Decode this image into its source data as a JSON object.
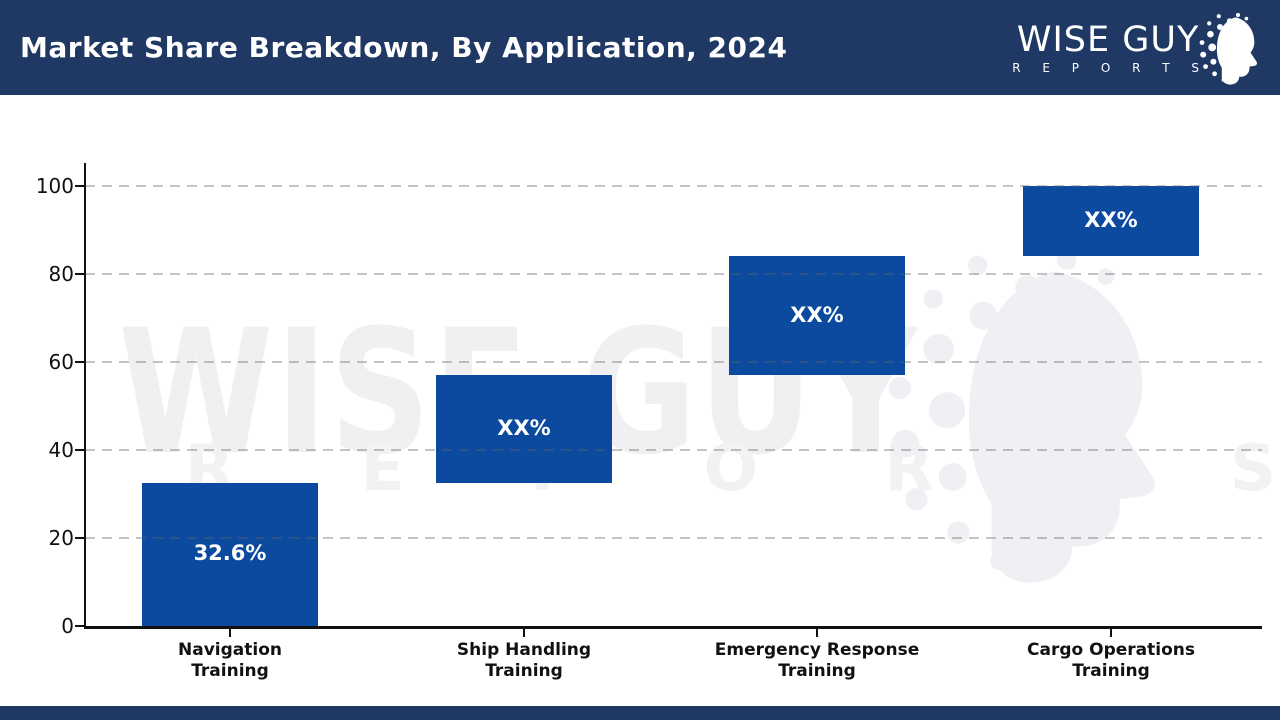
{
  "header": {
    "title": "Market Share Breakdown, By Application, 2024",
    "logo": {
      "line1": "WISE GUY",
      "line2": "R E P O R T S"
    }
  },
  "watermark": {
    "line1": "WISE GUY",
    "line2": "R E P O R T S"
  },
  "chart_data": {
    "type": "bar",
    "variant": "waterfall",
    "title": "Market Share Breakdown, By Application, 2024",
    "categories": [
      "Navigation\nTraining",
      "Ship Handling\nTraining",
      "Emergency Response\nTraining",
      "Cargo Operations\nTraining"
    ],
    "series": [
      {
        "name": "Navigation Training",
        "start": 0,
        "end": 32.6,
        "value": 32.6,
        "label": "32.6%"
      },
      {
        "name": "Ship Handling Training",
        "start": 32.6,
        "end": 57,
        "value": 24.4,
        "label": "XX%"
      },
      {
        "name": "Emergency Response Training",
        "start": 57,
        "end": 84,
        "value": 27,
        "label": "XX%"
      },
      {
        "name": "Cargo Operations Training",
        "start": 84,
        "end": 100,
        "value": 16,
        "label": "XX%"
      }
    ],
    "yticks": [
      0,
      20,
      40,
      60,
      80,
      100
    ],
    "ylim": [
      0,
      105
    ],
    "xlabel": "",
    "ylabel": "",
    "grid": "horizontal-dashed",
    "legend": "none",
    "bar_color": "#0b4a9f",
    "bar_label_color": "#ffffff"
  },
  "colors": {
    "header_navy": "#1f3864",
    "bar_blue": "#0b4a9f",
    "axis_black": "#111111",
    "watermark_gray": "#f0f0f3"
  }
}
